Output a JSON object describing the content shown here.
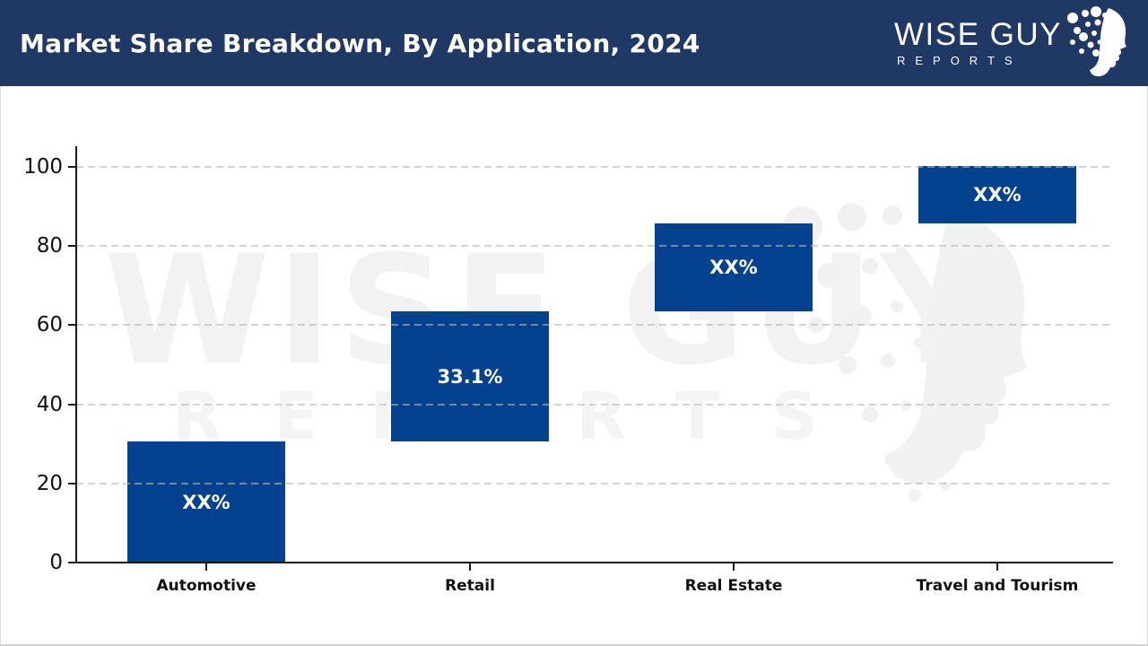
{
  "header": {
    "title": "Market Share Breakdown, By Application, 2024",
    "logo": {
      "line1": "WISE GUY",
      "line2": "REPORTS"
    }
  },
  "watermark": {
    "line1": "WISE GUY",
    "line2": "REPORTS"
  },
  "chart_data": {
    "type": "bar",
    "subtype": "waterfall",
    "title": "Market Share Breakdown, By Application, 2024",
    "categories": [
      "Automotive",
      "Retail",
      "Real Estate",
      "Travel and Tourism"
    ],
    "series": [
      {
        "name": "Market share (%)",
        "segments": [
          {
            "category": "Automotive",
            "start": 0,
            "end": 30.5,
            "label": "XX%"
          },
          {
            "category": "Retail",
            "start": 30.5,
            "end": 63.6,
            "label": "33.1%"
          },
          {
            "category": "Real Estate",
            "start": 63.6,
            "end": 85.7,
            "label": "XX%"
          },
          {
            "category": "Travel and Tourism",
            "start": 85.7,
            "end": 100.2,
            "label": "XX%"
          }
        ]
      }
    ],
    "xlabel": "",
    "ylabel": "",
    "ylim": [
      0,
      105
    ],
    "yticks": [
      0,
      20,
      40,
      60,
      80,
      100
    ],
    "grid": "horizontal-dashed",
    "legend": "none",
    "colors": {
      "bar": "#04428f",
      "grid": "#d9d9d9",
      "axis": "#1a1a1a",
      "header_bg": "#1f3864",
      "bar_label": "#ffffff",
      "tick_label": "#111111"
    }
  }
}
